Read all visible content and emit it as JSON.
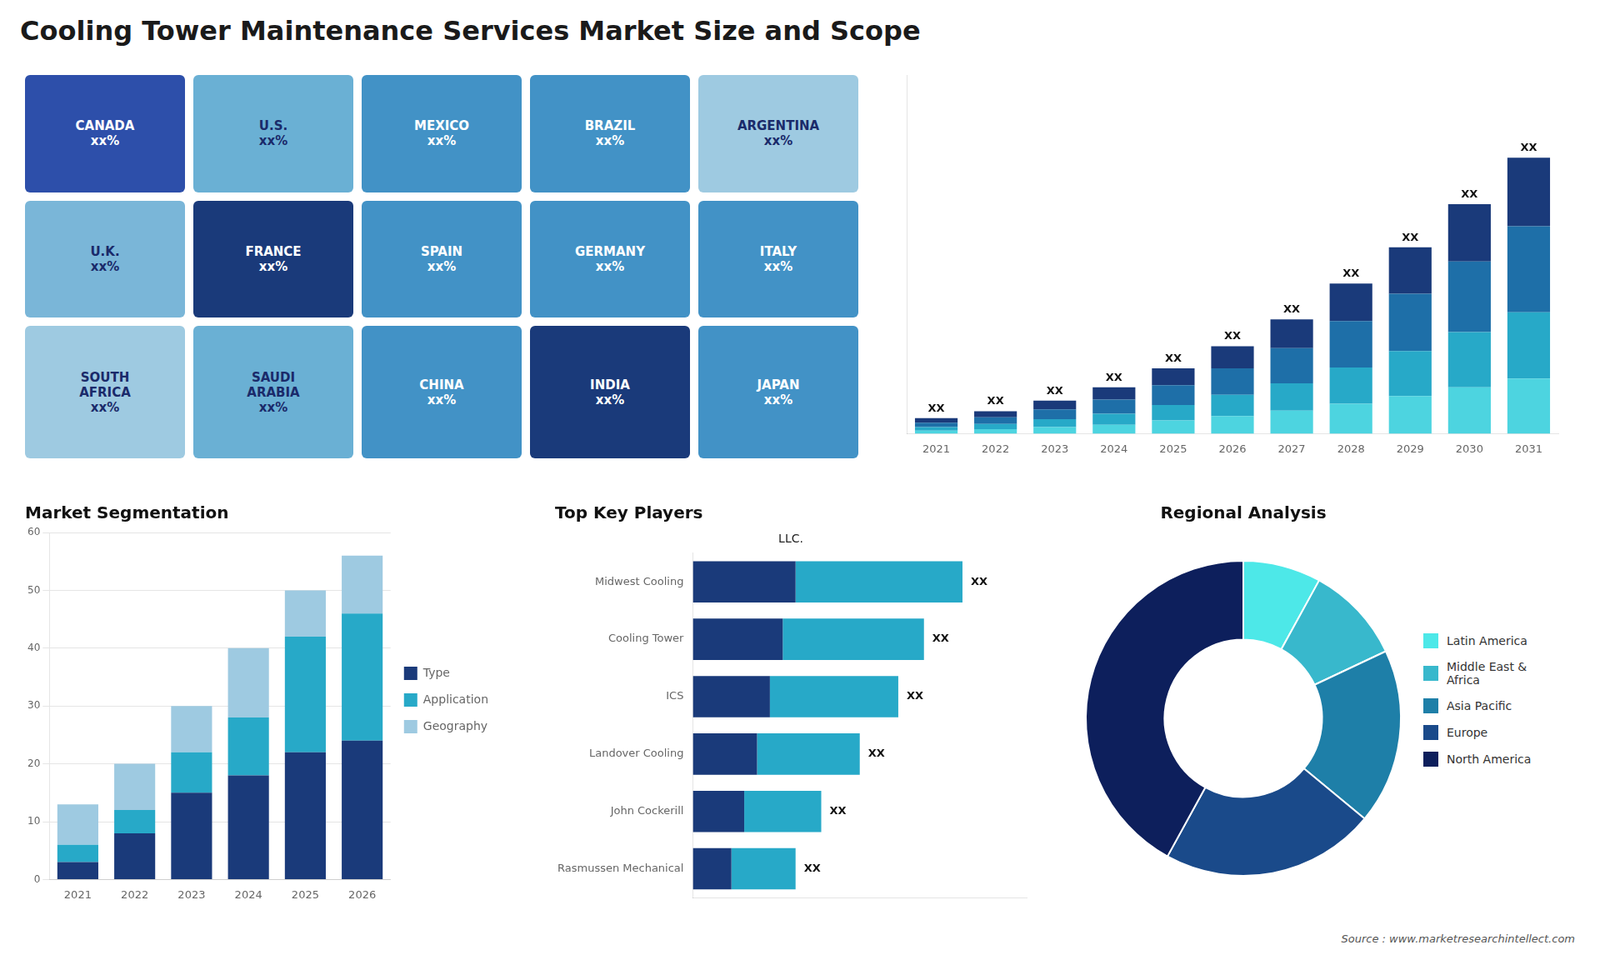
{
  "title": "Cooling Tower Maintenance Services Market Size and Scope",
  "annotations": [
    "Source : www.marketresearchintellect.com"
  ],
  "chart_data": [
    {
      "type": "map",
      "categories": [
        "CANADA\nxx%",
        "U.S.\nxx%",
        "MEXICO\nxx%",
        "BRAZIL\nxx%",
        "ARGENTINA\nxx%",
        "U.K.\nxx%",
        "FRANCE\nxx%",
        "SPAIN\nxx%",
        "GERMANY\nxx%",
        "ITALY\nxx%",
        "SOUTH\nAFRICA\nxx%",
        "SAUDI\nARABIA\nxx%",
        "CHINA\nxx%",
        "INDIA\nxx%",
        "JAPAN\nxx%"
      ],
      "colors": [
        "#2d4faa",
        "#6ab0d4",
        "#4292c6",
        "#4292c6",
        "#9ecae1",
        "#7ab6d8",
        "#1a3a7a",
        "#4292c6",
        "#4292c6",
        "#4292c6",
        "#9ecae1",
        "#6ab0d4",
        "#4292c6",
        "#1a3a7a",
        "#4292c6"
      ]
    },
    {
      "type": "bar",
      "stacked": true,
      "categories": [
        "2021",
        "2022",
        "2023",
        "2024",
        "2025",
        "2026",
        "2027",
        "2028",
        "2029",
        "2030",
        "2031"
      ],
      "series": [
        {
          "color": "#4dd4e0",
          "values": [
            0.7,
            1.0,
            1.5,
            2.0,
            3.0,
            4.0,
            5.2,
            6.8,
            8.5,
            10.5,
            12.5
          ]
        },
        {
          "color": "#27a9c8",
          "values": [
            0.8,
            1.2,
            1.8,
            2.5,
            3.5,
            4.8,
            6.2,
            8.2,
            10.2,
            12.5,
            15.0
          ]
        },
        {
          "color": "#1e6fa8",
          "values": [
            1.0,
            1.5,
            2.2,
            3.2,
            4.5,
            6.0,
            8.0,
            10.5,
            13.0,
            16.0,
            19.5
          ]
        },
        {
          "color": "#1a3a7a",
          "values": [
            1.0,
            1.4,
            2.0,
            2.8,
            3.8,
            5.0,
            6.5,
            8.5,
            10.5,
            13.0,
            15.5
          ]
        }
      ],
      "annotations": [
        "XX",
        "XX",
        "XX",
        "XX",
        "XX",
        "XX",
        "XX",
        "XX",
        "XX",
        "XX",
        "XX"
      ],
      "ylim": [
        0,
        81.25
      ],
      "tick_labels": "x",
      "grid": false
    },
    {
      "type": "bar",
      "title": "Market Segmentation",
      "stacked": true,
      "categories": [
        "2021",
        "2022",
        "2023",
        "2024",
        "2025",
        "2026"
      ],
      "series": [
        {
          "name": "Type",
          "color": "#1a3a7a",
          "values": [
            3,
            8,
            15,
            18,
            22,
            24
          ]
        },
        {
          "name": "Application",
          "color": "#27a9c8",
          "values": [
            3,
            4,
            7,
            10,
            20,
            22
          ]
        },
        {
          "name": "Geography",
          "color": "#9ecae1",
          "values": [
            7,
            8,
            8,
            12,
            8,
            10
          ]
        }
      ],
      "ylim": [
        0,
        60
      ],
      "yticks": [
        0,
        10,
        20,
        30,
        40,
        50,
        60
      ],
      "grid": true,
      "legend": "right"
    },
    {
      "type": "bar",
      "title": "Top Key Players",
      "subtitle": "LLC.",
      "orientation": "horizontal",
      "stacked": true,
      "categories": [
        "Midwest Cooling",
        "Cooling Tower",
        "ICS",
        "Landover Cooling",
        "John Cockerill",
        "Rasmussen Mechanical"
      ],
      "series": [
        {
          "color": "#1a3a7a",
          "values": [
            4.0,
            3.5,
            3.0,
            2.5,
            2.0,
            1.5
          ]
        },
        {
          "color": "#27a9c8",
          "values": [
            6.5,
            5.5,
            5.0,
            4.0,
            3.0,
            2.5
          ]
        }
      ],
      "annotations": [
        "XX",
        "XX",
        "XX",
        "XX",
        "XX",
        "XX"
      ],
      "xlim": [
        0,
        13
      ],
      "tick_labels": "y",
      "grid": false
    },
    {
      "type": "doughnut",
      "title": "Regional Analysis",
      "categories": [
        "Latin America",
        "Middle East &\nAfrica",
        "Asia Pacific",
        "Europe",
        "North America"
      ],
      "values": [
        8,
        10,
        18,
        22,
        42
      ],
      "colors": [
        "#4de8e8",
        "#38b8cc",
        "#1e7fa8",
        "#1a4a8a",
        "#0d1f5c"
      ],
      "legend": "right"
    }
  ]
}
